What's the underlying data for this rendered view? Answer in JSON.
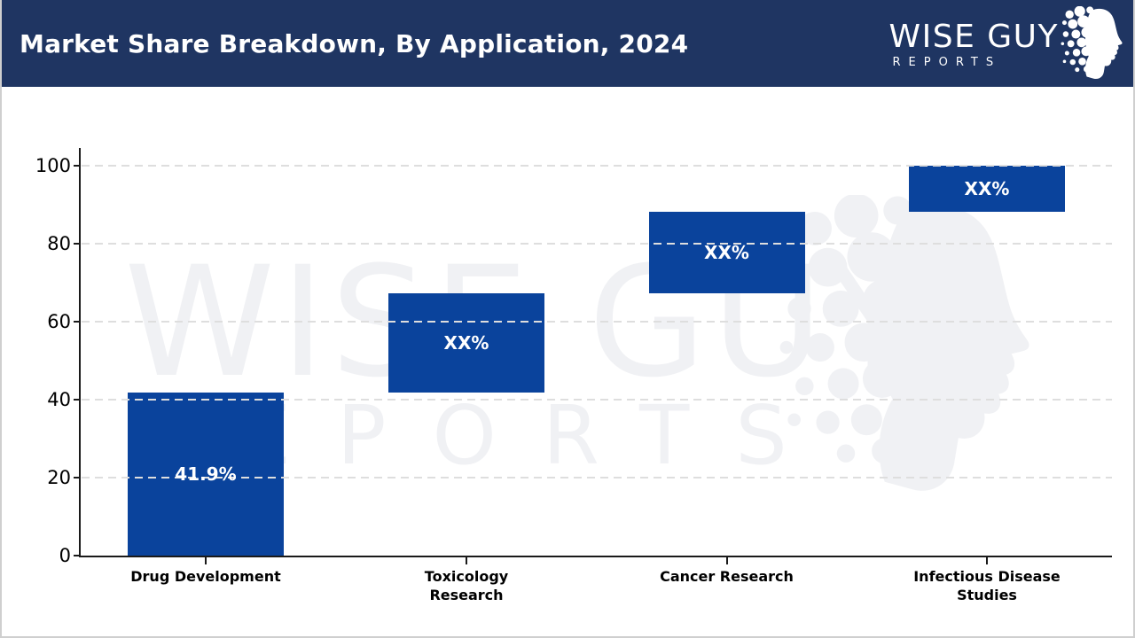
{
  "header": {
    "title": "Market Share Breakdown, By Application, 2024",
    "logo": {
      "line1": "WISE GUY",
      "line2": "REPORTS"
    }
  },
  "watermark": {
    "line1": "WISE GUY",
    "line2": "REPORTS"
  },
  "chart_data": {
    "type": "bar",
    "subtype": "waterfall",
    "title": "Market Share Breakdown, By Application, 2024",
    "xlabel": "",
    "ylabel": "",
    "ylim": [
      0,
      100
    ],
    "yticks": [
      0,
      20,
      40,
      60,
      80,
      100
    ],
    "grid": "horizontal-dashed",
    "legend": "none",
    "bar_color": "#0a439c",
    "value_label_color": "#ffffff",
    "categories": [
      "Drug Development",
      "Toxicology Research",
      "Cancer Research",
      "Infectious Disease Studies"
    ],
    "category_label_lines": [
      [
        "Drug Development"
      ],
      [
        "Toxicology",
        "Research"
      ],
      [
        "Cancer Research"
      ],
      [
        "Infectious Disease",
        "Studies"
      ]
    ],
    "series": [
      {
        "name": "Market Share",
        "segments": [
          {
            "category": "Drug Development",
            "start": 0,
            "end": 41.9,
            "value_label": "41.9%"
          },
          {
            "category": "Toxicology Research",
            "start": 41.9,
            "end": 67.3,
            "value_label": "XX%"
          },
          {
            "category": "Cancer Research",
            "start": 67.3,
            "end": 88.2,
            "value_label": "XX%"
          },
          {
            "category": "Infectious Disease Studies",
            "start": 88.2,
            "end": 100,
            "value_label": "XX%"
          }
        ]
      }
    ]
  },
  "colors": {
    "header_bg": "#1f3562",
    "bar": "#0a439c",
    "grid": "#dedede",
    "axis": "#1a1a1a",
    "watermark": "#f0f1f4",
    "frame_border": "#cfcfcf"
  }
}
